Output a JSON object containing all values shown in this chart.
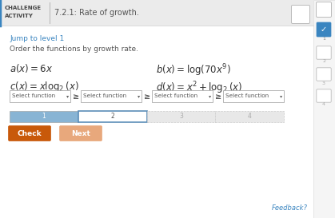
{
  "title_label1": "CHALLENGE",
  "title_label2": "ACTIVITY",
  "title_text": "7.2.1: Rate of growth.",
  "jump_text": "Jump to level 1",
  "instruction": "Order the functions by growth rate.",
  "dropdown_text": "Select function",
  "tab_labels": [
    "1",
    "2",
    "3",
    "4"
  ],
  "btn_check": "Check",
  "btn_next": "Next",
  "feedback": "Feedback?",
  "bg_color": "#ffffff",
  "header_bg": "#ebebeb",
  "header_border": "#cccccc",
  "tab1_color": "#88b4d4",
  "tab2_border": "#5b8db8",
  "tab_inactive_bg": "#e8e8e8",
  "tab_inactive_text": "#aaaaaa",
  "btn_check_color": "#c8590a",
  "btn_next_color": "#e8a87c",
  "jump_color": "#3a85c0",
  "feedback_color": "#3a85c0",
  "blue_check_color": "#3a85c0",
  "dropdown_border": "#aaaaaa",
  "side_bg": "#f5f5f5",
  "side_border": "#dddddd",
  "shield_border": "#bbbbbb",
  "header_blue_line": "#3a85c0",
  "eq_color": "#333333"
}
